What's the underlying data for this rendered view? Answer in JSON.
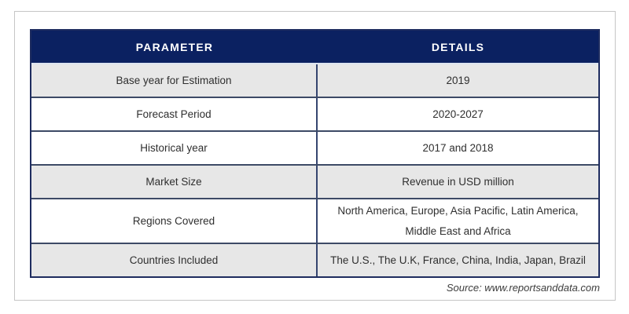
{
  "table": {
    "columns": [
      {
        "label": "PARAMETER"
      },
      {
        "label": "DETAILS"
      }
    ],
    "rows": [
      {
        "parameter": "Base year for Estimation",
        "details": "2019",
        "shaded": true,
        "tall": false
      },
      {
        "parameter": "Forecast Period",
        "details": "2020-2027",
        "shaded": false,
        "tall": false
      },
      {
        "parameter": "Historical year",
        "details": "2017 and 2018",
        "shaded": false,
        "tall": false
      },
      {
        "parameter": "Market Size",
        "details": "Revenue in USD million",
        "shaded": true,
        "tall": false
      },
      {
        "parameter": "Regions Covered",
        "details": "North America, Europe, Asia Pacific, Latin America, Middle East and Africa",
        "shaded": false,
        "tall": true
      },
      {
        "parameter": "Countries Included",
        "details": "The U.S., The  U.K, France, China, India, Japan, Brazil",
        "shaded": true,
        "tall": false
      }
    ]
  },
  "footer": {
    "source_text": "Source: www.reportsanddata.com"
  },
  "colors": {
    "header_bg": "#0b2161",
    "header_text": "#ffffff",
    "shaded_row_bg": "#e7e7e7",
    "plain_row_bg": "#ffffff",
    "body_text": "#2f2f2f",
    "outer_table_border": "#1e2c5f",
    "inner_border": "#3d4a66",
    "header_separator": "#dde4f0",
    "frame_border": "#c6c6c6",
    "source_text": "#3d3d3d"
  }
}
